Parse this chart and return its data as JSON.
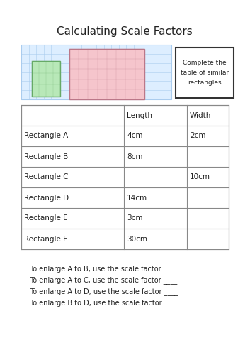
{
  "title": "Calculating Scale Factors",
  "title_fontsize": 11,
  "background_color": "#ffffff",
  "grid_bg": "#ddeeff",
  "grid_line_color": "#aaccee",
  "green_rect": {
    "color": "#b8e8b8",
    "edge": "#66aa66"
  },
  "pink_rect": {
    "color": "#f5c5cc",
    "edge": "#bb7788"
  },
  "note_box_text": "Complete the\ntable of similar\nrectangles",
  "table_col_labels": [
    "",
    "Length",
    "Width"
  ],
  "table_rows": [
    [
      "Rectangle A",
      "4cm",
      "2cm"
    ],
    [
      "Rectangle B",
      "8cm",
      ""
    ],
    [
      "Rectangle C",
      "",
      "10cm"
    ],
    [
      "Rectangle D",
      "14cm",
      ""
    ],
    [
      "Rectangle E",
      "3cm",
      ""
    ],
    [
      "Rectangle F",
      "30cm",
      ""
    ]
  ],
  "footer_lines": [
    "To enlarge A to B, use the scale factor ____",
    "To enlarge A to C, use the scale factor ____",
    "To enlarge A to D, use the scale factor ____",
    "To enlarge B to D, use the scale factor ____"
  ],
  "font_color": "#222222",
  "table_line_color": "#888888",
  "note_line_color": "#333333"
}
